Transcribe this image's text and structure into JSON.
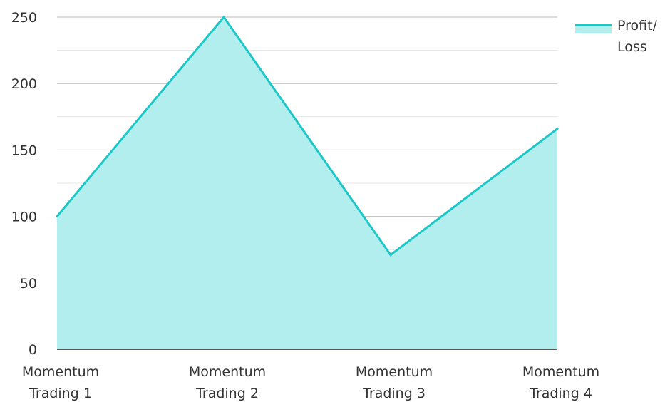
{
  "chart_data": {
    "type": "area",
    "title": "",
    "xlabel": "",
    "ylabel": "",
    "categories": [
      [
        "Momentum",
        "Trading 1"
      ],
      [
        "Momentum",
        "Trading 2"
      ],
      [
        "Momentum",
        "Trading 3"
      ],
      [
        "Momentum",
        "Trading 4"
      ]
    ],
    "series": [
      {
        "name": "Profit/ Loss",
        "legend_lines": [
          "Profit/",
          "Loss"
        ],
        "values": [
          100,
          250,
          71,
          166
        ]
      }
    ],
    "ylim": [
      0,
      250
    ],
    "yticks": [
      0,
      50,
      100,
      150,
      200,
      250
    ],
    "grid": true,
    "legend_position": "top-right",
    "colors": {
      "line": "#1cc7c7",
      "fill": "#b2eeee",
      "grid_major": "#bbbbbb",
      "grid_minor": "#e6e6e6",
      "axis": "#222222",
      "text": "#333333"
    }
  }
}
